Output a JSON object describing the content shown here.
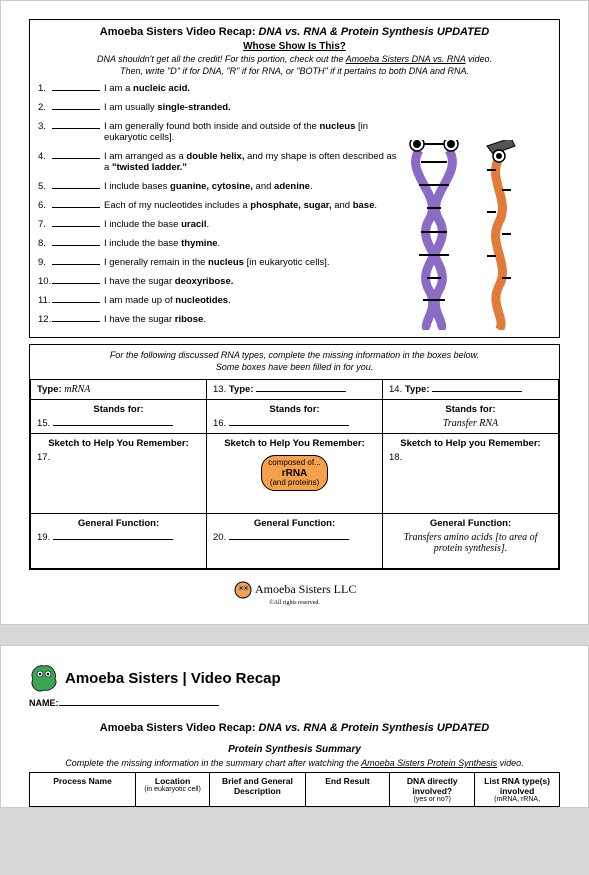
{
  "page1": {
    "main_title_prefix": "Amoeba Sisters Video Recap: ",
    "main_title_italic": "DNA vs. RNA & Protein Synthesis UPDATED",
    "whose_show": "Whose Show Is This?",
    "intro_line1_a": "DNA shouldn't get all the credit! For this portion, check out the ",
    "intro_line1_link": "Amoeba Sisters DNA vs. RNA",
    "intro_line1_b": " video.",
    "intro_line2": "Then, write \"D\" if for DNA, \"R\" if for RNA, or \"BOTH\" if it pertains to both DNA and RNA.",
    "questions": [
      {
        "n": "1.",
        "pre": "I am a ",
        "b": "nucleic acid.",
        "post": ""
      },
      {
        "n": "2.",
        "pre": "I am usually ",
        "b": "single-stranded.",
        "post": ""
      },
      {
        "n": "3.",
        "pre": "I am generally found both inside and outside of the ",
        "b": "nucleus",
        "post": " [in eukaryotic cells]."
      },
      {
        "n": "4.",
        "pre": "I am arranged as a ",
        "b": "double helix,",
        "post": " and my shape is often described as a ",
        "b2": "\"twisted ladder.\""
      },
      {
        "n": "5.",
        "pre": "I include bases ",
        "b": "guanine, cytosine,",
        "post": " and ",
        "b2": "adenine",
        "post2": "."
      },
      {
        "n": "6.",
        "pre": "Each of my nucleotides includes a ",
        "b": "phosphate, sugar,",
        "post": " and ",
        "b2": "base",
        "post2": "."
      },
      {
        "n": "7.",
        "pre": "I include the base ",
        "b": "uracil",
        "post": "."
      },
      {
        "n": "8.",
        "pre": "I include the base ",
        "b": "thymine",
        "post": "."
      },
      {
        "n": "9.",
        "pre": "I generally remain in the ",
        "b": "nucleus",
        "post": " [in eukaryotic cells]."
      },
      {
        "n": "10.",
        "pre": "I have the sugar ",
        "b": "deoxyribose.",
        "post": ""
      },
      {
        "n": "11.",
        "pre": "I am made up of ",
        "b": "nucleotides",
        "post": "."
      },
      {
        "n": "12.",
        "pre": "I have the sugar ",
        "b": "ribose",
        "post": "."
      }
    ],
    "rna_intro1": "For the following discussed RNA types, complete the missing information in the boxes below.",
    "rna_intro2": "Some boxes have been filled in for you.",
    "row_type": "Type:",
    "mrna": "mRNA",
    "q13": "13.",
    "q14": "14.",
    "stands_for": "Stands for:",
    "q15": "15.",
    "q16": "16.",
    "transfer_rna": "Transfer RNA",
    "sketch": "Sketch to Help You Remember:",
    "sketch_lower": "Sketch to Help you Remember:",
    "q17": "17.",
    "q18": "18.",
    "rrna_top": "composed of...",
    "rrna_mid": "rRNA",
    "rrna_bot": "(and proteins)",
    "gen_func": "General Function:",
    "q19": "19.",
    "q20": "20.",
    "gf_text": "Transfers amino acids [to area of protein synthesis].",
    "footer": "Amoeba Sisters LLC",
    "footer_sub": "©All rights reserved."
  },
  "page2": {
    "header": "Amoeba Sisters | Video Recap",
    "name_label": "NAME:",
    "title_prefix": "Amoeba Sisters Video Recap: ",
    "title_italic": "DNA vs. RNA & Protein Synthesis UPDATED",
    "sub": "Protein Synthesis Summary",
    "intro_a": "Complete the missing information in the summary chart after watching the ",
    "intro_link": "Amoeba Sisters Protein Synthesis",
    "intro_b": " video.",
    "cols": {
      "c1": "Process Name",
      "c2": "Location",
      "c2sub": "(in eukaryotic cell)",
      "c3": "Brief and General Description",
      "c4": "End Result",
      "c5": "DNA directly involved?",
      "c5sub": "(yes or no?)",
      "c6": "List RNA type(s) involved",
      "c6sub": "(mRNA, rRNA,"
    }
  },
  "colors": {
    "dna_purple": "#8b6bc4",
    "rna_orange": "#e07b3a",
    "eye_black": "#000000",
    "badge": "#f5a04c",
    "amoeba": "#3aa655"
  }
}
